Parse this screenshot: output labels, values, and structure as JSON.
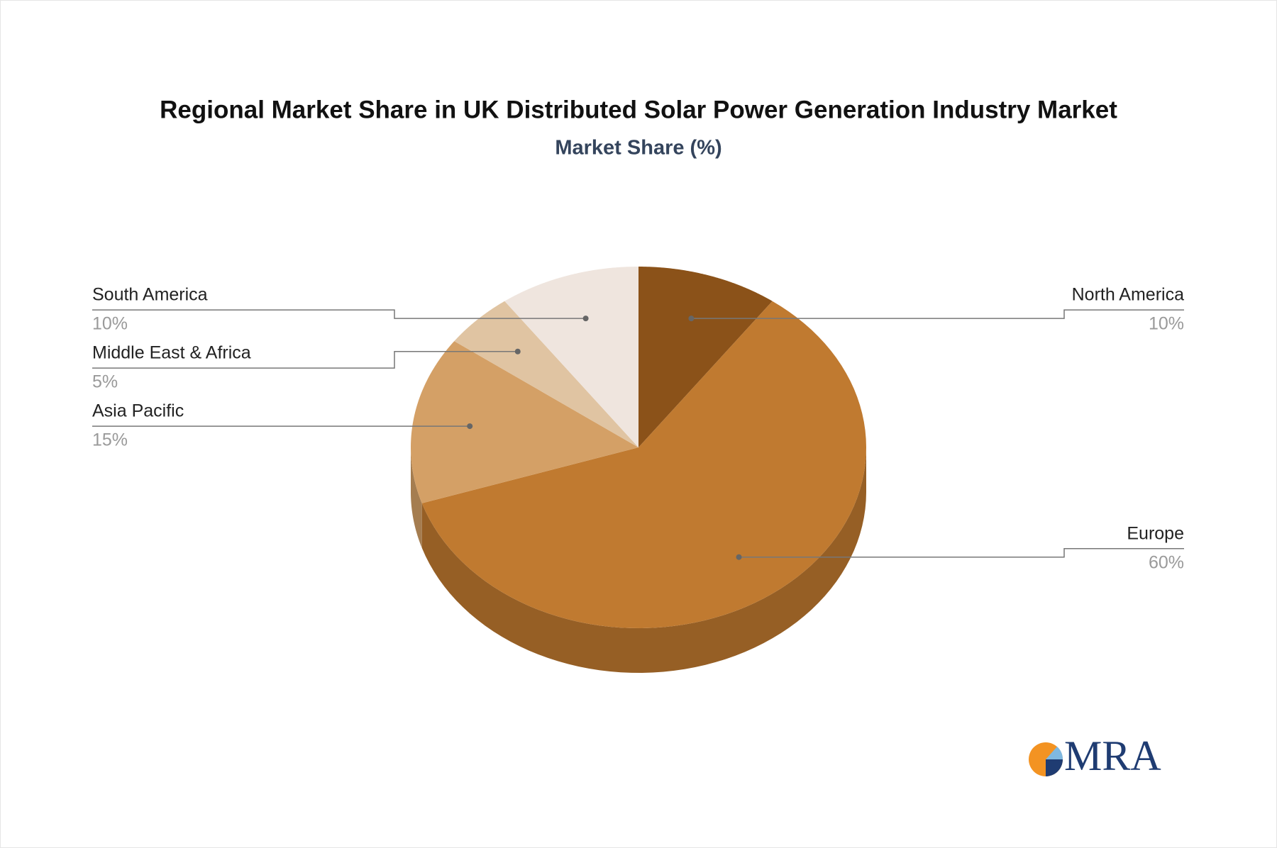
{
  "chart_data": {
    "type": "pie3d",
    "title": "Regional Market Share in UK Distributed Solar Power Generation Industry Market",
    "subtitle": "Market Share (%)",
    "categories": [
      "North America",
      "Europe",
      "Asia Pacific",
      "Middle East & Africa",
      "South America"
    ],
    "values": [
      10,
      60,
      15,
      5,
      10
    ],
    "value_labels": [
      "10%",
      "60%",
      "15%",
      "5%",
      "10%"
    ],
    "colors": [
      "#8b5219",
      "#c07a30",
      "#d4a066",
      "#e0c4a2",
      "#efe5de"
    ]
  },
  "logo": "MRA"
}
